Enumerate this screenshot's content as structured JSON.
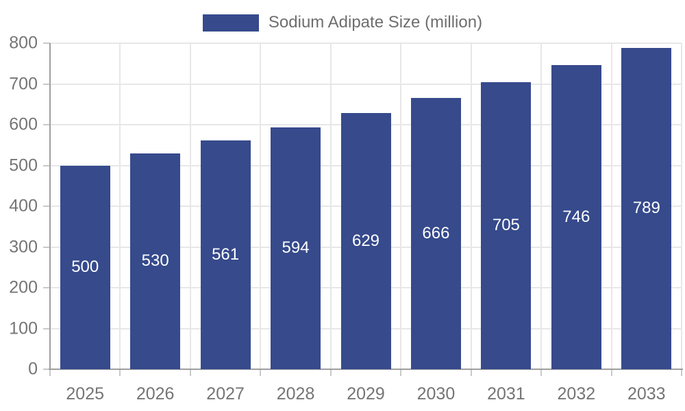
{
  "legend": {
    "label": "Sodium Adipate Size (million)"
  },
  "chart_data": {
    "type": "bar",
    "title": "",
    "xlabel": "",
    "ylabel": "",
    "categories": [
      "2025",
      "2026",
      "2027",
      "2028",
      "2029",
      "2030",
      "2031",
      "2032",
      "2033"
    ],
    "series": [
      {
        "name": "Sodium Adipate Size (million)",
        "values": [
          500,
          530,
          561,
          594,
          629,
          666,
          705,
          746,
          789
        ]
      }
    ],
    "value_labels_shown": true,
    "ylim": [
      0,
      800
    ],
    "yticks": [
      0,
      100,
      200,
      300,
      400,
      500,
      600,
      700,
      800
    ],
    "grid": true,
    "legend_position": "top-center",
    "colors": {
      "bar": "#364A8C",
      "value_label": "#FFFFFF",
      "axis_tick_label": "#757575",
      "legend_text": "#6E6E6E",
      "axis_line": "#9E9E9E",
      "gridline": "#E7E7E7",
      "tick_mark": "#C9C9C9",
      "background": "#FFFFFF"
    }
  }
}
